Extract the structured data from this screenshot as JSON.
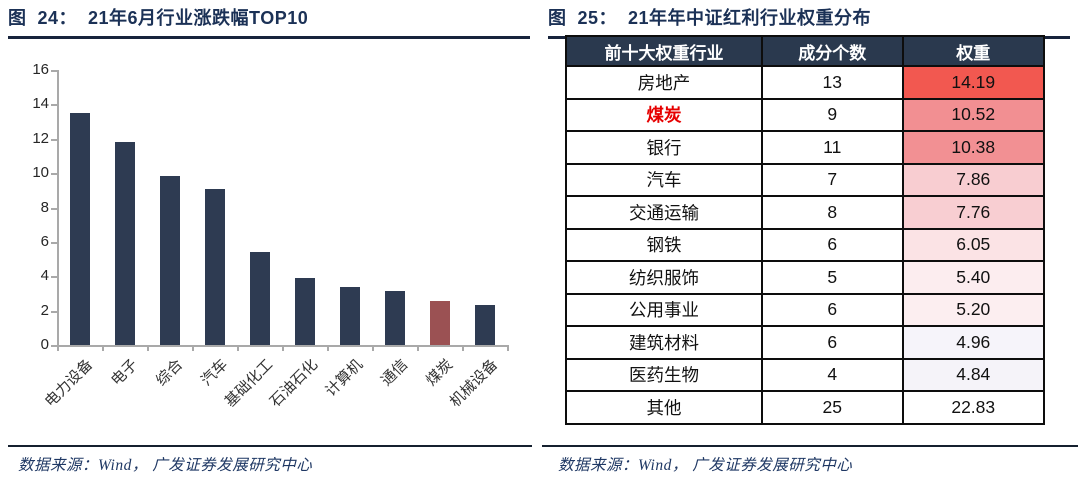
{
  "left_panel": {
    "title": "图  24：  21年6月行业涨跌幅TOP10",
    "source": "数据来源：Wind， 广发证券发展研究中心"
  },
  "right_panel": {
    "title": "图  25：  21年年中证红利行业权重分布",
    "source": "数据来源：Wind， 广发证券发展研究中心",
    "table": {
      "headers": [
        "前十大权重行业",
        "成分个数",
        "权重"
      ],
      "rows": [
        {
          "industry": "房地产",
          "count": "13",
          "weight": "14.19",
          "weight_bg": "#f25850",
          "highlight": false
        },
        {
          "industry": "煤炭",
          "count": "9",
          "weight": "10.52",
          "weight_bg": "#f28f92",
          "highlight": true
        },
        {
          "industry": "银行",
          "count": "11",
          "weight": "10.38",
          "weight_bg": "#f29093",
          "highlight": false
        },
        {
          "industry": "汽车",
          "count": "7",
          "weight": "7.86",
          "weight_bg": "#f8cdd1",
          "highlight": false
        },
        {
          "industry": "交通运输",
          "count": "8",
          "weight": "7.76",
          "weight_bg": "#f8ced2",
          "highlight": false
        },
        {
          "industry": "钢铁",
          "count": "6",
          "weight": "6.05",
          "weight_bg": "#fbe3e5",
          "highlight": false
        },
        {
          "industry": "纺织服饰",
          "count": "5",
          "weight": "5.40",
          "weight_bg": "#fcedef",
          "highlight": false
        },
        {
          "industry": "公用事业",
          "count": "6",
          "weight": "5.20",
          "weight_bg": "#fceef0",
          "highlight": false
        },
        {
          "industry": "建筑材料",
          "count": "6",
          "weight": "4.96",
          "weight_bg": "#f6f4fa",
          "highlight": false
        },
        {
          "industry": "医药生物",
          "count": "4",
          "weight": "4.84",
          "weight_bg": "#f5f3f9",
          "highlight": false
        },
        {
          "industry": "其他",
          "count": "25",
          "weight": "22.83",
          "weight_bg": "#ffffff",
          "highlight": false
        }
      ],
      "highlight_text_color": "#e60000"
    }
  },
  "chart_data": [
    {
      "type": "bar",
      "title": "21年6月行业涨跌幅TOP10",
      "categories": [
        "电力设备",
        "电子",
        "综合",
        "汽车",
        "基础化工",
        "石油石化",
        "计算机",
        "通信",
        "煤炭",
        "机械设备"
      ],
      "values": [
        13.5,
        11.8,
        9.85,
        9.1,
        5.4,
        3.9,
        3.35,
        3.15,
        2.55,
        2.3
      ],
      "xlabel": "",
      "ylabel": "",
      "ylim": [
        0,
        16
      ],
      "yticks": [
        0,
        2,
        4,
        6,
        8,
        10,
        12,
        14,
        16
      ],
      "grid": false,
      "legend": false,
      "bar_color": "#2e3b52",
      "highlight_category": "煤炭",
      "highlight_color": "#9b5153",
      "x_tick_label_rotation_deg": 45
    },
    {
      "type": "table",
      "title": "21年年中证红利行业权重分布",
      "columns": [
        "前十大权重行业",
        "成分个数",
        "权重"
      ],
      "rows": [
        [
          "房地产",
          13,
          14.19
        ],
        [
          "煤炭",
          9,
          10.52
        ],
        [
          "银行",
          11,
          10.38
        ],
        [
          "汽车",
          7,
          7.86
        ],
        [
          "交通运输",
          8,
          7.76
        ],
        [
          "钢铁",
          6,
          6.05
        ],
        [
          "纺织服饰",
          5,
          5.4
        ],
        [
          "公用事业",
          6,
          5.2
        ],
        [
          "建筑材料",
          6,
          4.96
        ],
        [
          "医药生物",
          4,
          4.84
        ],
        [
          "其他",
          25,
          22.83
        ]
      ],
      "weight_color_scale": "red-to-white heatmap on 权重 column, 其他 row uncolored"
    }
  ],
  "colors": {
    "title_navy": "#1b3156",
    "rule_dark": "#17233c",
    "bar_navy": "#2e3b52",
    "bar_red": "#9b5153",
    "table_header_bg": "#2a394e",
    "table_header_text": "#ffffff",
    "axis_grey": "#a9a9a9",
    "source_navy": "#1f3864",
    "coal_text_red": "#e60000"
  }
}
